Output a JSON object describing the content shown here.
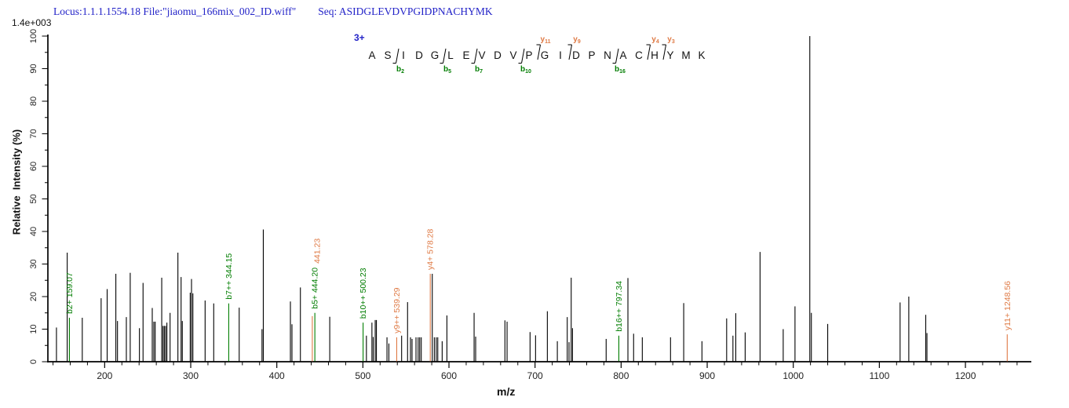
{
  "header": {
    "locus_text": "Locus:1.1.1.1554.18 File:\"jiaomu_166mix_002_ID.wiff\"",
    "seq_text": "Seq: ASIDGLEVDVPGIDPNACHYMK"
  },
  "intensity_scale": "1.4e+003",
  "precursor_charge": "3+",
  "peptide": {
    "residues": [
      "A",
      "S",
      "I",
      "D",
      "G",
      "L",
      "E",
      "V",
      "D",
      "V",
      "P",
      "G",
      "I",
      "D",
      "P",
      "N",
      "A",
      "C",
      "H",
      "Y",
      "M",
      "K"
    ],
    "b_ions": [
      {
        "ion": "b",
        "sub": "2",
        "gap": 2
      },
      {
        "ion": "b",
        "sub": "5",
        "gap": 5
      },
      {
        "ion": "b",
        "sub": "7",
        "gap": 7
      },
      {
        "ion": "b",
        "sub": "10",
        "gap": 10
      },
      {
        "ion": "b",
        "sub": "16",
        "gap": 16
      }
    ],
    "y_ions": [
      {
        "ion": "y",
        "sub": "11",
        "gap": 11
      },
      {
        "ion": "y",
        "sub": "9",
        "gap": 13
      },
      {
        "ion": "y",
        "sub": "4",
        "gap": 18
      },
      {
        "ion": "y",
        "sub": "3",
        "gap": 19
      }
    ]
  },
  "axes": {
    "x_label": "m/z",
    "y_label": "Relative  Intensity (%)"
  },
  "colors": {
    "b_ion_green": "#007d00",
    "y_ion_orange": "#df7a45",
    "header_blue": "#2323c8",
    "peak_black": "#000000"
  },
  "chart_data": {
    "type": "bar",
    "title": "",
    "xlabel": "m/z",
    "ylabel": "Relative  Intensity (%)",
    "xlim": [
      135,
      1276
    ],
    "ylim": [
      0,
      100
    ],
    "intensity_full_scale": "1.4e+003",
    "x_major_ticks": [
      200,
      300,
      400,
      500,
      600,
      700,
      800,
      900,
      1000,
      1100,
      1200
    ],
    "x_minor_ticks": {
      "start": 140,
      "end": 1260,
      "step": 20
    },
    "y_major_ticks": [
      0,
      10,
      20,
      30,
      40,
      50,
      60,
      70,
      80,
      90,
      100
    ],
    "y_minor_tick_step": 5,
    "legend": "off",
    "grid": "off",
    "peaks": [
      [
        144,
        10.5,
        "k"
      ],
      [
        156.5,
        33.5,
        "k"
      ],
      [
        159.07,
        13.5,
        "b",
        "b2+ 159.07"
      ],
      [
        174,
        13.5,
        "k"
      ],
      [
        195.9,
        19.5,
        "k"
      ],
      [
        202.9,
        22.3,
        "k"
      ],
      [
        213,
        27,
        "k"
      ],
      [
        214.9,
        12.5,
        "k"
      ],
      [
        225.2,
        13.7,
        "k"
      ],
      [
        229.7,
        27.3,
        "k"
      ],
      [
        240.4,
        10.3,
        "k"
      ],
      [
        244.6,
        24.2,
        "k"
      ],
      [
        255.3,
        16.5,
        "k"
      ],
      [
        257.1,
        12.3,
        "k"
      ],
      [
        258.7,
        12.3,
        "k"
      ],
      [
        266.3,
        25.8,
        "k"
      ],
      [
        267.8,
        11,
        "k"
      ],
      [
        269.3,
        11,
        "k"
      ],
      [
        270.8,
        11,
        "k"
      ],
      [
        272.3,
        12,
        "k"
      ],
      [
        276,
        15,
        "k"
      ],
      [
        285.1,
        33.5,
        "k"
      ],
      [
        288.8,
        26,
        "k"
      ],
      [
        290.2,
        12.5,
        "k"
      ],
      [
        299.4,
        21.2,
        "k"
      ],
      [
        300.9,
        25.4,
        "k"
      ],
      [
        302.5,
        21,
        "k"
      ],
      [
        316.7,
        18.8,
        "k"
      ],
      [
        326.7,
        17.9,
        "k"
      ],
      [
        344.15,
        17.9,
        "b",
        "b7++ 344.15"
      ],
      [
        356.3,
        16.6,
        "k"
      ],
      [
        382.8,
        10,
        "k"
      ],
      [
        384.3,
        40.6,
        "k"
      ],
      [
        415.8,
        18.5,
        "k"
      ],
      [
        417.6,
        11.5,
        "k"
      ],
      [
        427.4,
        22.8,
        "k"
      ],
      [
        441.23,
        14,
        "y",
        "441.23",
        6,
        -62
      ],
      [
        444.2,
        15,
        "b",
        "b5+ 444.20"
      ],
      [
        461.5,
        13.8,
        "k"
      ],
      [
        500.23,
        12,
        "b",
        "b10++ 500.23"
      ],
      [
        504.1,
        8,
        "k"
      ],
      [
        510.5,
        12,
        "k"
      ],
      [
        512,
        7.6,
        "k"
      ],
      [
        514.3,
        12.8,
        "k"
      ],
      [
        515.7,
        12.8,
        "k"
      ],
      [
        528,
        7.5,
        "k"
      ],
      [
        530.2,
        5.6,
        "k"
      ],
      [
        539.29,
        7.5,
        "y",
        "y9++ 539.29"
      ],
      [
        545,
        8,
        "k"
      ],
      [
        551.9,
        18.3,
        "k"
      ],
      [
        555.3,
        7.5,
        "k"
      ],
      [
        557.1,
        7,
        "k"
      ],
      [
        561.7,
        7.5,
        "k"
      ],
      [
        564.2,
        7.5,
        "k"
      ],
      [
        566,
        7.5,
        "k"
      ],
      [
        567.8,
        7.5,
        "k"
      ],
      [
        578.28,
        27,
        "y",
        "y4+ 578.28"
      ],
      [
        580.6,
        27,
        "k"
      ],
      [
        583,
        7.5,
        "k"
      ],
      [
        585.2,
        7.5,
        "k"
      ],
      [
        587,
        7.5,
        "k"
      ],
      [
        592.1,
        6.3,
        "k"
      ],
      [
        597.6,
        14.2,
        "k"
      ],
      [
        629.2,
        15,
        "k"
      ],
      [
        631,
        7.7,
        "k"
      ],
      [
        665,
        12.7,
        "k"
      ],
      [
        667.5,
        12.3,
        "k"
      ],
      [
        694.2,
        9.1,
        "k"
      ],
      [
        700.6,
        8.1,
        "k"
      ],
      [
        714.3,
        15.5,
        "k"
      ],
      [
        725.9,
        6.3,
        "k"
      ],
      [
        737.4,
        13.7,
        "k"
      ],
      [
        739.5,
        6,
        "k"
      ],
      [
        742,
        25.8,
        "k"
      ],
      [
        743.5,
        10.3,
        "k"
      ],
      [
        782.6,
        7,
        "k"
      ],
      [
        797.34,
        8,
        "b",
        "b16++ 797.34"
      ],
      [
        807.9,
        25.7,
        "k"
      ],
      [
        814.5,
        8.6,
        "k"
      ],
      [
        824.6,
        7.5,
        "k"
      ],
      [
        857.4,
        7.5,
        "k"
      ],
      [
        872.7,
        18,
        "k"
      ],
      [
        893.9,
        6.3,
        "k"
      ],
      [
        922.6,
        13.3,
        "k"
      ],
      [
        929.9,
        8,
        "k"
      ],
      [
        933.2,
        14.9,
        "k"
      ],
      [
        944.1,
        9,
        "k"
      ],
      [
        961.4,
        33.7,
        "k"
      ],
      [
        988.3,
        10,
        "k"
      ],
      [
        1002,
        17,
        "k"
      ],
      [
        1019.2,
        100,
        "k"
      ],
      [
        1021,
        15,
        "k"
      ],
      [
        1040,
        11.6,
        "k"
      ],
      [
        1124.1,
        18.2,
        "k"
      ],
      [
        1134.2,
        20,
        "k"
      ],
      [
        1153.9,
        14.4,
        "k"
      ],
      [
        1155.3,
        8.8,
        "k"
      ],
      [
        1248.56,
        8.4,
        "y",
        "y11+ 1248.56"
      ]
    ]
  }
}
